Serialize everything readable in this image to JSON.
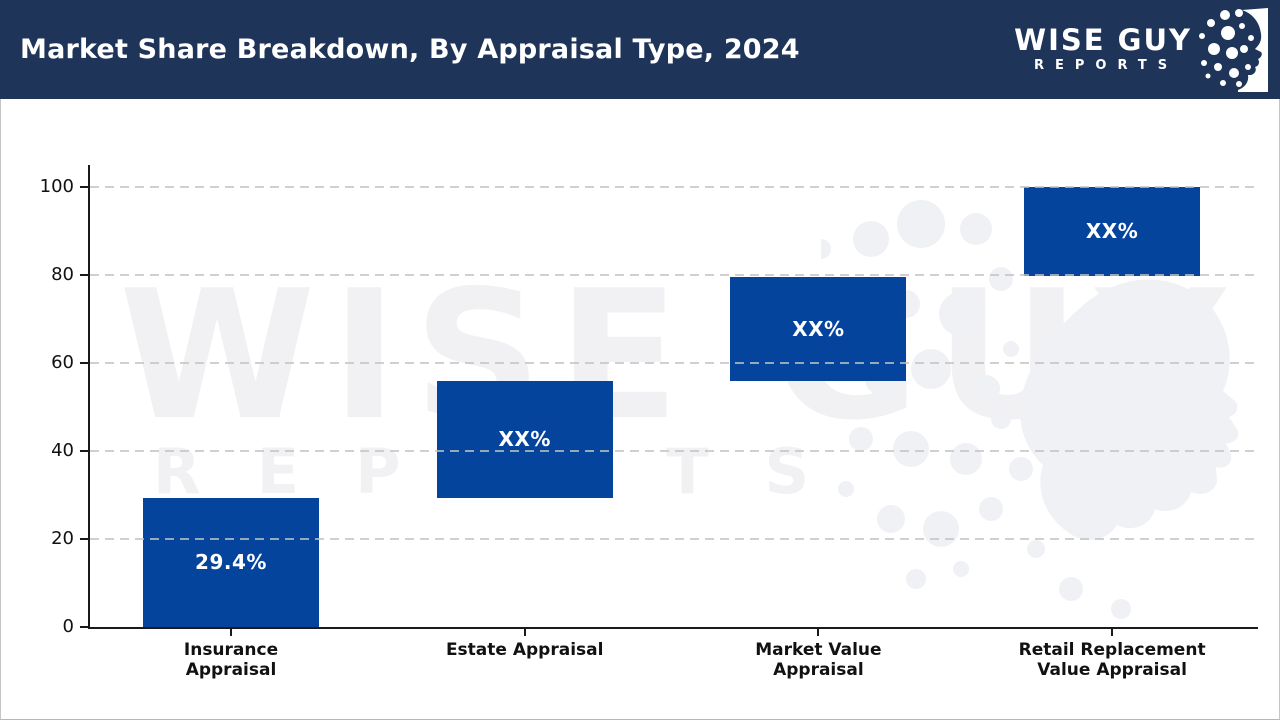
{
  "header": {
    "title": "Market Share Breakdown, By Appraisal Type, 2024",
    "brand": {
      "name": "WISE GUY",
      "sub": "REPORTS"
    }
  },
  "colors": {
    "header_bg": "#1f3459",
    "bar": "#05449c",
    "bar_label_text": "#ffffff",
    "axis": "#1a1a1a",
    "grid": "#c3c3c3",
    "watermark": "#f1f1f4"
  },
  "chart_data": {
    "type": "bar",
    "variant": "waterfall",
    "title": "Market Share Breakdown, By Appraisal Type, 2024",
    "categories": [
      "Insurance\nAppraisal",
      "Estate Appraisal",
      "Market Value\nAppraisal",
      "Retail Replacement\nValue Appraisal"
    ],
    "segments": [
      {
        "category": "Insurance Appraisal",
        "start": 0,
        "end": 29.4,
        "label": "29.4%"
      },
      {
        "category": "Estate Appraisal",
        "start": 29.4,
        "end": 56.0,
        "label": "XX%"
      },
      {
        "category": "Market Value Appraisal",
        "start": 56.0,
        "end": 79.6,
        "label": "XX%"
      },
      {
        "category": "Retail Replacement Value Appraisal",
        "start": 79.8,
        "end": 100,
        "label": "XX%"
      }
    ],
    "xlabel": "",
    "ylabel": "",
    "ylim": [
      0,
      100
    ],
    "yticks": [
      0,
      20,
      40,
      60,
      80,
      100
    ],
    "grid": "dashed horizontal, drawn over bars",
    "legend": "none",
    "watermark_text": [
      "WISE GUY",
      "REPORTS"
    ]
  }
}
